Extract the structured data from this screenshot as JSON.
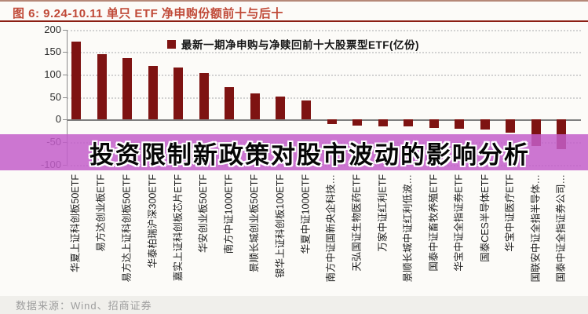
{
  "page": {
    "title": "图 6: 9.24-10.11 单只 ETF 净申购份额前十与后十",
    "source_note": "数据来源：Wind、招商证券"
  },
  "overlay_banner": {
    "text": "投资限制新政策对股市波动的影响分析"
  },
  "chart_data": {
    "type": "bar",
    "title": "图 6: 9.24-10.11 单只 ETF 净申购份额前十与后十",
    "legend": [
      "最新一期净申购与净赎回前十大股票型ETF(亿份)"
    ],
    "legend_position": "top-center",
    "unit": "亿份",
    "ylim": [
      -100,
      200
    ],
    "yticks": [
      200,
      150,
      100,
      50,
      0,
      -50,
      -100
    ],
    "grid": "horizontal-dotted",
    "categories": [
      "华夏上证科创板50ETF",
      "易方达创业板ETF",
      "易方达上证科创板50ETF",
      "华泰柏瑞沪深300ETF",
      "嘉实上证科创板芯片ETF",
      "华安创业板50ETF",
      "南方中证1000ETF",
      "景顺长城创业板50ETF",
      "银华上证科创板100ETF",
      "华夏中证1000ETF",
      "南方中证国新央企科技…",
      "天弘国证生物医药ETF",
      "万家中证红利ETF",
      "景顺长城中证红利低波…",
      "国泰中证畜牧养殖ETF",
      "华宝中证全指证券ETF",
      "国泰CES半导体ETF",
      "华宝中证医疗ETF",
      "国联安中证全指半导体…",
      "国泰中证全指证券公司…"
    ],
    "values": [
      174,
      145,
      137,
      120,
      116,
      103,
      72,
      59,
      51,
      42,
      -10,
      -13,
      -15,
      -16,
      -19,
      -20,
      -23,
      -29,
      -58,
      -66
    ],
    "bar_color": "#7E1312"
  },
  "colors": {
    "title_text": "#C04A38",
    "bar": "#7E1312",
    "banner_bg": "#C35ECA",
    "axis": "#7F7F7F",
    "grid": "#D2D2D2",
    "title_rule": "#8C1F14",
    "top_rule": "#B58878",
    "footer_bg": "#F0EFEB",
    "footer_text": "#9E9E9E"
  }
}
